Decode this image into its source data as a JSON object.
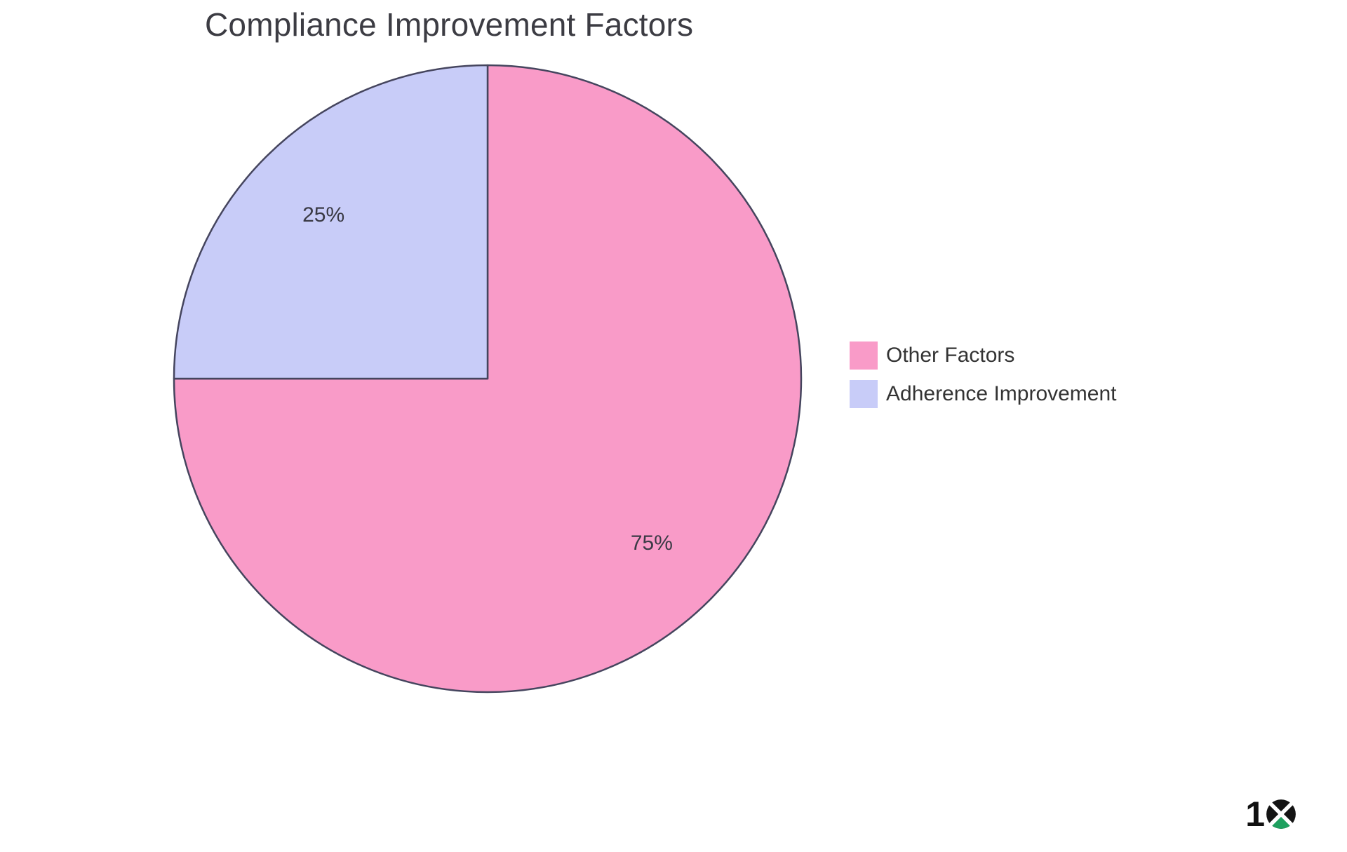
{
  "title": "Compliance Improvement Factors",
  "chart_data": {
    "type": "pie",
    "title": "Compliance Improvement Factors",
    "slices": [
      {
        "label": "Other Factors",
        "value": 75,
        "color": "#F99BC8"
      },
      {
        "label": "Adherence Improvement",
        "value": 25,
        "color": "#C8CCF8"
      }
    ],
    "start_angle_deg": 0,
    "direction": "clockwise",
    "label_format": "percent",
    "labels_shown": [
      "75%",
      "25%"
    ],
    "legend_position": "right",
    "stroke_color": "#45455E",
    "background_color": "#FFFFFF"
  },
  "legend": {
    "items": [
      {
        "label": "Other Factors",
        "color": "#F99BC8"
      },
      {
        "label": "Adherence Improvement",
        "color": "#C8CCF8"
      }
    ]
  },
  "logo": {
    "text": "1"
  }
}
